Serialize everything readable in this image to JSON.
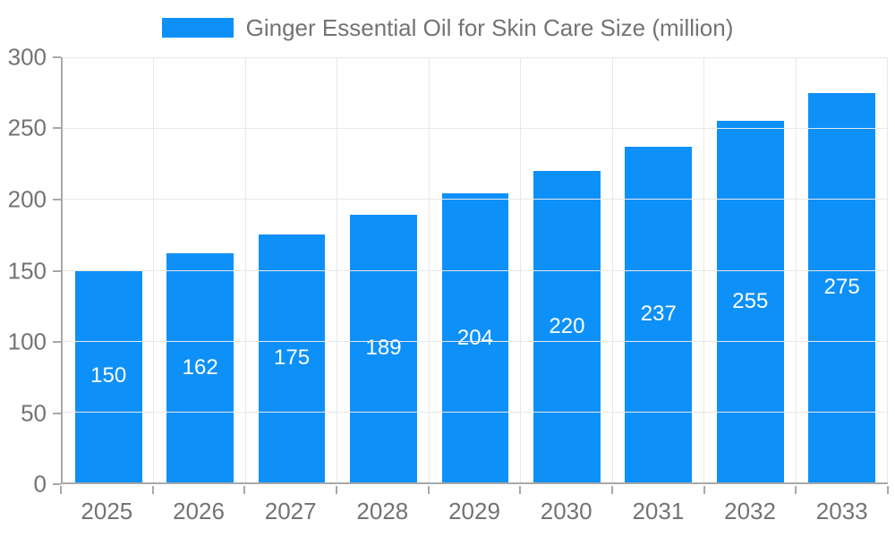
{
  "legend": {
    "label": "Ginger Essential Oil for Skin Care Size (million)"
  },
  "colors": {
    "bar": "#0e90f9",
    "grid": "#e8e8e8",
    "axis": "#a8a8a8",
    "text": "#737373",
    "bar_label": "#ffffff",
    "background": "#ffffff"
  },
  "chart_data": {
    "type": "bar",
    "title": "Ginger Essential Oil for Skin Care Size (million)",
    "categories": [
      "2025",
      "2026",
      "2027",
      "2028",
      "2029",
      "2030",
      "2031",
      "2032",
      "2033"
    ],
    "series": [
      {
        "name": "Ginger Essential Oil for Skin Care Size (million)",
        "values": [
          150,
          162,
          175,
          189,
          204,
          220,
          237,
          255,
          275
        ]
      }
    ],
    "values": [
      150,
      162,
      175,
      189,
      204,
      220,
      237,
      255,
      275
    ],
    "xlabel": "",
    "ylabel": "",
    "ylim": [
      0,
      300
    ],
    "yticks": [
      0,
      50,
      100,
      150,
      200,
      250,
      300
    ],
    "grid": true,
    "legend_position": "top",
    "bar_label_position": "inside-center",
    "bar_label_color": "#ffffff"
  }
}
